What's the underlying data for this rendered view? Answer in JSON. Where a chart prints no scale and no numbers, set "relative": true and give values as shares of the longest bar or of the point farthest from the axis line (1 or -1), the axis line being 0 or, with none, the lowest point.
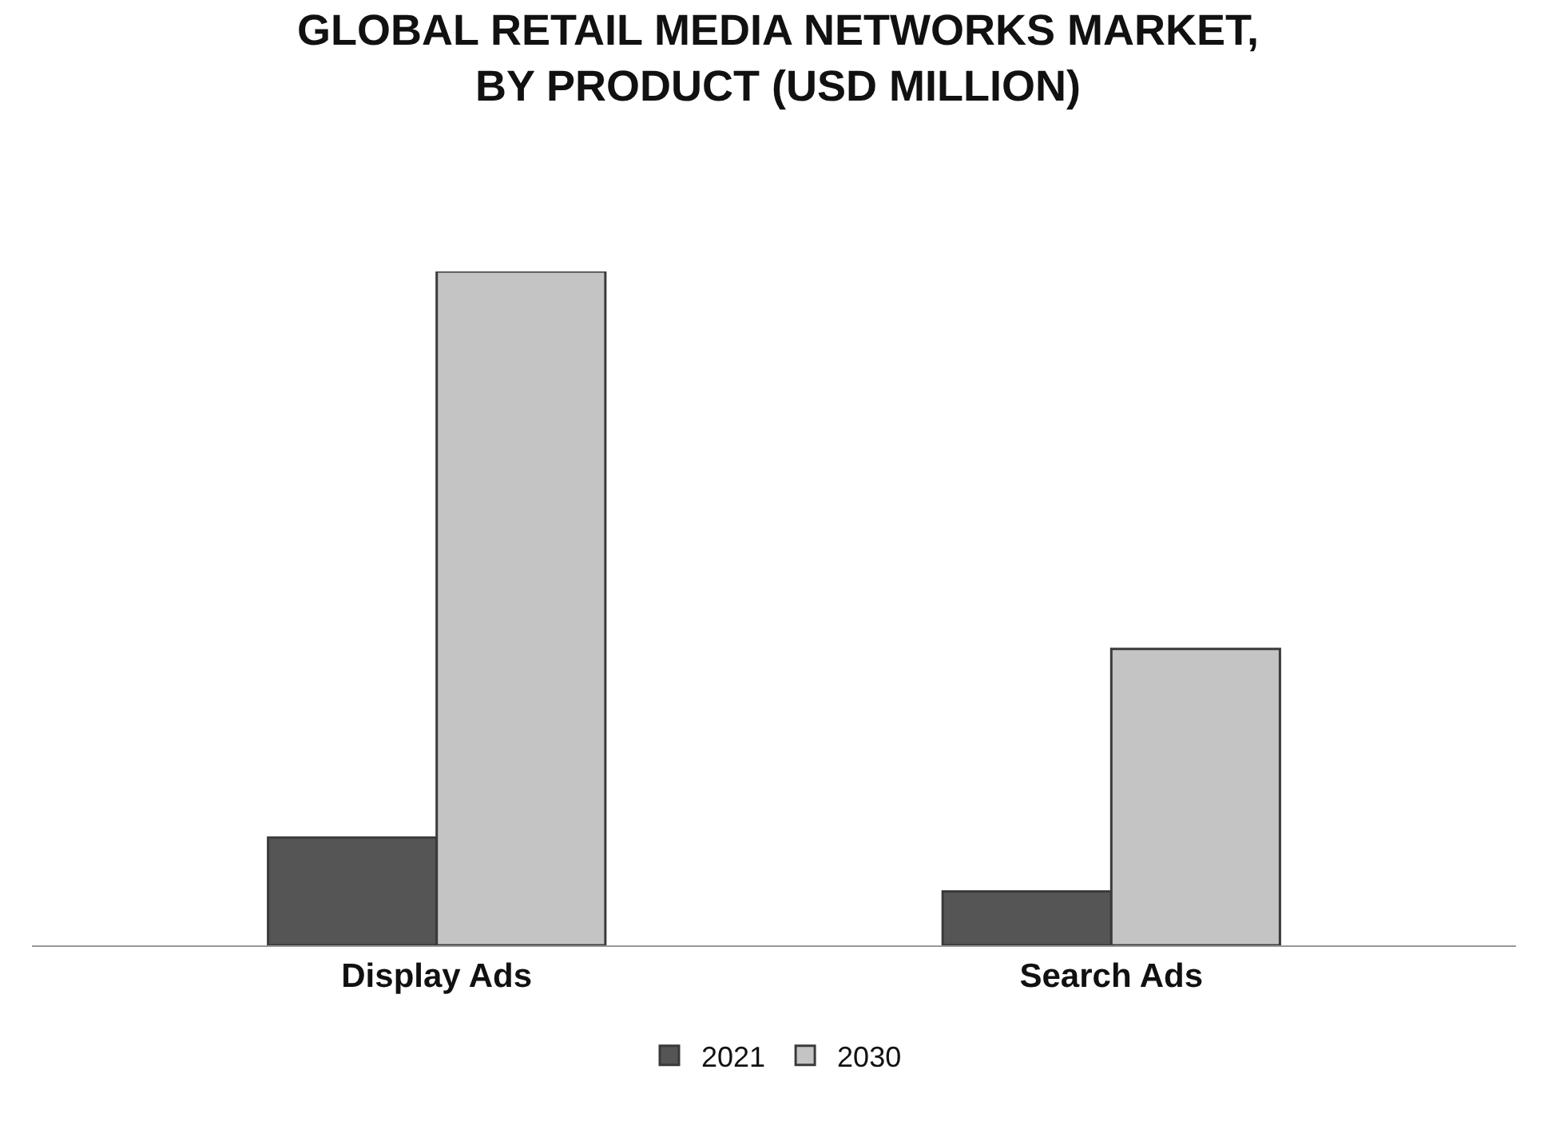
{
  "chart_data": {
    "type": "bar",
    "title": "GLOBAL RETAIL MEDIA NETWORKS MARKET, BY PRODUCT (USD MILLION)",
    "categories": [
      "Display Ads",
      "Search Ads"
    ],
    "relative": true,
    "series": [
      {
        "name": "2021",
        "color": "#555555",
        "values": [
          0.16,
          0.08
        ]
      },
      {
        "name": "2030",
        "color": "#c4c4c4",
        "values": [
          1,
          0.44
        ]
      }
    ],
    "legend": "bottom"
  }
}
